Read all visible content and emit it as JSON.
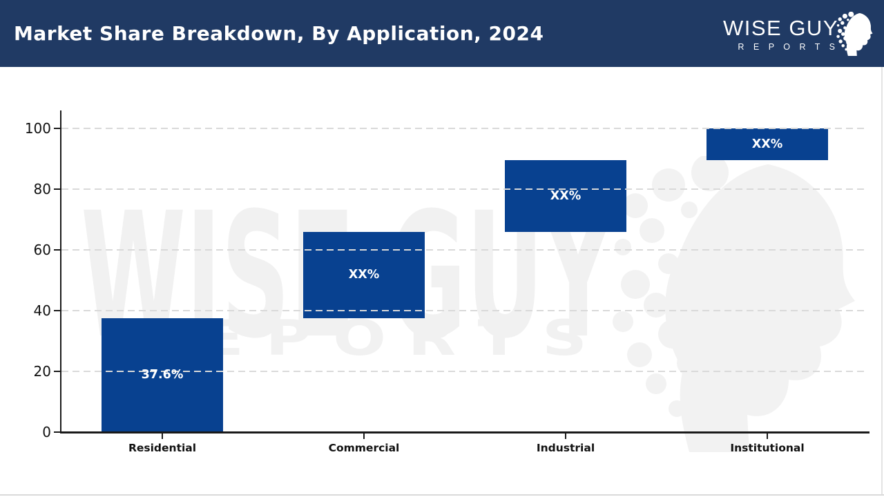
{
  "header": {
    "title": "Market Share Breakdown, By Application, 2024",
    "logo": {
      "name": "Wise Guy Reports",
      "line1": "WISE GUY",
      "line2": "R E P O R T S"
    },
    "bg_color": "#203A64"
  },
  "watermark": {
    "line1": "WISE GUY",
    "line2": "R E P O R T S"
  },
  "chart_data": {
    "type": "bar",
    "subtype": "waterfall",
    "title": "Market Share Breakdown, By Application, 2024",
    "xlabel": "",
    "ylabel": "",
    "categories": [
      "Residential",
      "Commercial",
      "Industrial",
      "Institutional"
    ],
    "values": [
      37.6,
      28.3,
      23.6,
      10.5
    ],
    "cumulative_start": [
      0,
      37.6,
      65.9,
      89.5
    ],
    "cumulative_end": [
      37.6,
      65.9,
      89.5,
      100
    ],
    "labels": [
      "37.6%",
      "XX%",
      "XX%",
      "XX%"
    ],
    "yticks": [
      0,
      20,
      40,
      60,
      80,
      100
    ],
    "ylim": [
      0,
      100
    ],
    "bar_color": "#084190",
    "bar_label_color": "#ffffff",
    "grid": "horizontal dashed light-gray, drawn over bars",
    "legend": "none"
  }
}
